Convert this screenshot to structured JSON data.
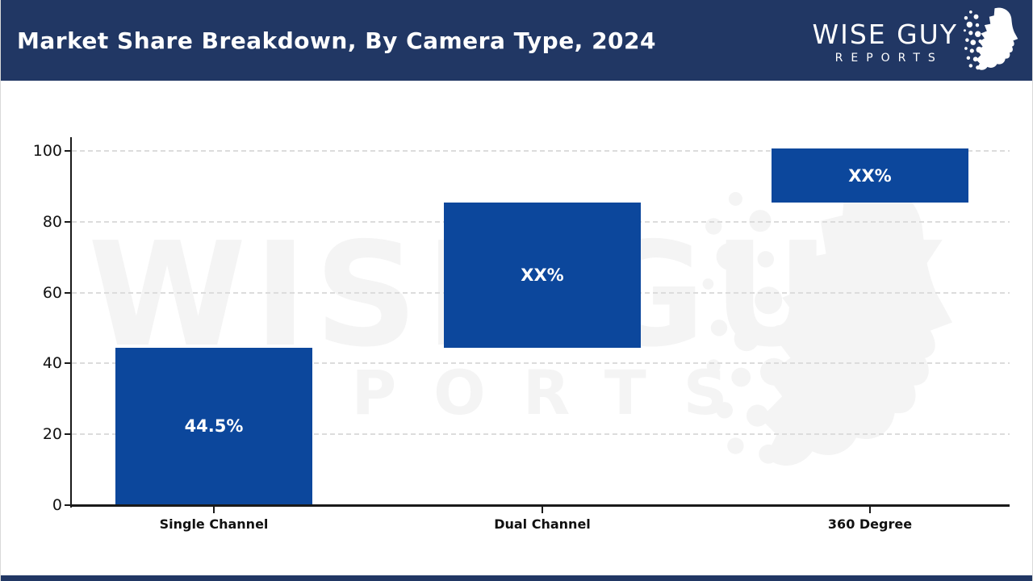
{
  "header": {
    "title": "Market Share Breakdown, By Camera Type, 2024",
    "brand": {
      "name": "WISE GUY",
      "sub": "REPORTS"
    }
  },
  "watermark": {
    "line1": "WISE GUY",
    "line2": "REPORTS"
  },
  "chart_data": {
    "type": "bar",
    "variant": "waterfall-style floating segments",
    "title": "Market Share Breakdown, By Camera Type, 2024",
    "categories": [
      "Single Channel",
      "Dual Channel",
      "360 Degree"
    ],
    "segments": [
      {
        "category": "Single Channel",
        "from": 0,
        "to": 44.5,
        "label": "44.5%"
      },
      {
        "category": "Dual Channel",
        "from": 44.5,
        "to": 85.4,
        "label": "XX%"
      },
      {
        "category": "360 Degree",
        "from": 85.4,
        "to": 100.7,
        "label": "XX%"
      }
    ],
    "yticks": [
      0,
      20,
      40,
      60,
      80,
      100
    ],
    "ylim": [
      0,
      104
    ],
    "xlabel": "",
    "ylabel": "",
    "grid": "horizontal-dashed",
    "legend": "none",
    "colors": {
      "bar": "#0c479c",
      "bar_label": "#ffffff",
      "axis": "#1a1a1a",
      "gridline": "#dcdcdc",
      "header_bg": "#213764",
      "watermark": "#f4f4f4"
    }
  }
}
